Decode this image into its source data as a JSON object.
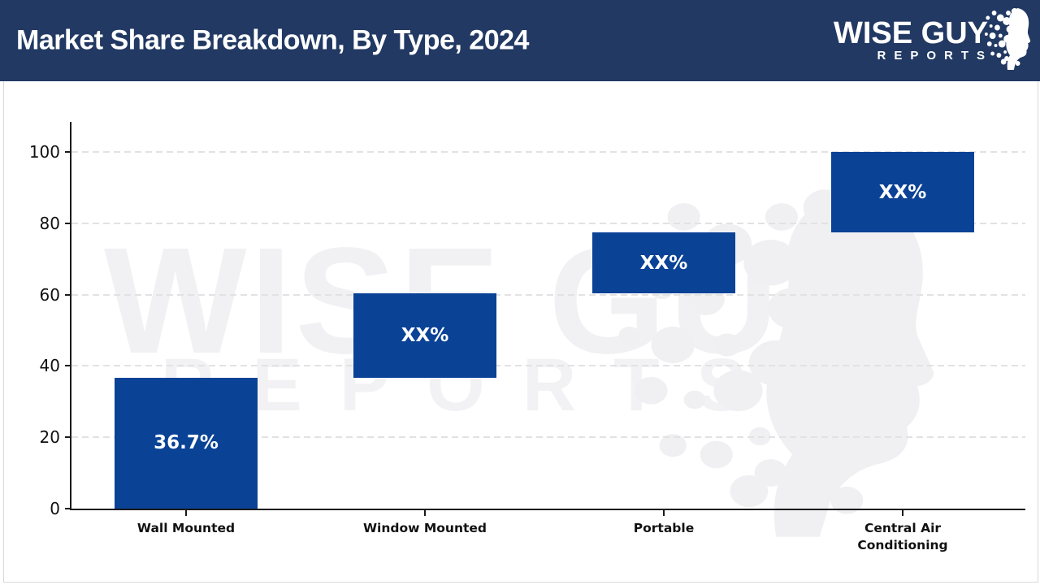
{
  "header": {
    "title": "Market Share Breakdown, By Type, 2024",
    "logo_line1": "WISE GUY",
    "logo_line2": "REPORTS"
  },
  "watermark": {
    "line1": "WISE GUY",
    "line2": "REPORTS"
  },
  "chart_data": {
    "type": "bar",
    "variant": "waterfall",
    "title": "Market Share Breakdown, By Type, 2024",
    "categories": [
      "Wall Mounted",
      "Window Mounted",
      "Portable",
      "Central Air Conditioning"
    ],
    "segments": [
      {
        "category": "Wall Mounted",
        "start": 0,
        "end": 36.7,
        "label": "36.7%"
      },
      {
        "category": "Window Mounted",
        "start": 36.7,
        "end": 60.4,
        "label": "XX%"
      },
      {
        "category": "Portable",
        "start": 60.4,
        "end": 77.4,
        "label": "XX%"
      },
      {
        "category": "Central Air Conditioning",
        "start": 77.4,
        "end": 100,
        "label": "XX%"
      }
    ],
    "y_ticks": [
      0,
      20,
      40,
      60,
      80,
      100
    ],
    "ylim": [
      0,
      108
    ],
    "xlabel": "",
    "ylabel": "",
    "grid": {
      "horizontal": true,
      "style": "dashed"
    },
    "legend": "none",
    "colors": {
      "bar": "#0a4296",
      "bar_label": "#ffffff",
      "axis": "#1a1a1a",
      "gridline": "#e2e2e2",
      "header_bg": "#223963",
      "watermark": "#f1f1f4"
    }
  }
}
